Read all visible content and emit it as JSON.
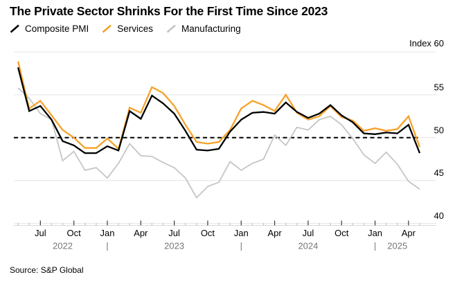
{
  "title": "The Private Sector Shrinks For the First Time Since 2023",
  "legend": {
    "items": [
      {
        "label": "Composite PMI",
        "color": "#000000"
      },
      {
        "label": "Services",
        "color": "#f7a128"
      },
      {
        "label": "Manufacturing",
        "color": "#c5c5c5"
      }
    ]
  },
  "y_axis_top_label": "Index 60",
  "source": "Source: S&P Global",
  "colors": {
    "composite": "#000000",
    "services": "#f7a128",
    "manufacturing": "#c5c5c5",
    "gridline": "#e4e4e4",
    "axis_line": "#d8d8d8",
    "major_tick": "#3a3a3a",
    "minor_tick": "#c2c2c2",
    "year_text": "#767676",
    "reference_line": "#000000"
  },
  "chart_data": {
    "type": "line",
    "title": "The Private Sector Shrinks For the First Time Since 2023",
    "x": [
      "2022-04",
      "2022-05",
      "2022-06",
      "2022-07",
      "2022-08",
      "2022-09",
      "2022-10",
      "2022-11",
      "2022-12",
      "2023-01",
      "2023-02",
      "2023-03",
      "2023-04",
      "2023-05",
      "2023-06",
      "2023-07",
      "2023-08",
      "2023-09",
      "2023-10",
      "2023-11",
      "2023-12",
      "2024-01",
      "2024-02",
      "2024-03",
      "2024-04",
      "2024-05",
      "2024-06",
      "2024-07",
      "2024-08",
      "2024-09",
      "2024-10",
      "2024-11",
      "2024-12",
      "2025-01",
      "2025-02",
      "2025-03",
      "2025-04"
    ],
    "series": [
      {
        "name": "Composite PMI",
        "color": "#000000",
        "values": [
          58.2,
          53.1,
          53.7,
          52.1,
          49.6,
          49.1,
          48.2,
          48.2,
          49.0,
          48.5,
          53.1,
          52.2,
          54.9,
          54.0,
          52.8,
          50.8,
          48.6,
          48.5,
          48.7,
          50.7,
          52.1,
          52.9,
          53.0,
          52.8,
          54.1,
          53.0,
          52.3,
          52.8,
          53.8,
          52.6,
          51.8,
          50.5,
          50.4,
          50.6,
          50.5,
          51.5,
          48.2
        ]
      },
      {
        "name": "Services",
        "color": "#f7a128",
        "values": [
          58.9,
          53.4,
          54.3,
          52.6,
          50.9,
          50.0,
          48.8,
          48.8,
          49.9,
          48.7,
          53.5,
          52.9,
          55.9,
          55.2,
          53.7,
          51.5,
          49.5,
          49.3,
          49.5,
          50.9,
          53.4,
          54.3,
          53.8,
          53.1,
          55.0,
          52.9,
          52.1,
          52.5,
          53.7,
          52.4,
          52.0,
          50.8,
          51.1,
          50.8,
          51.0,
          52.5,
          48.9
        ]
      },
      {
        "name": "Manufacturing",
        "color": "#c5c5c5",
        "values": [
          55.8,
          54.6,
          52.8,
          52.1,
          47.3,
          48.4,
          46.2,
          46.5,
          45.3,
          47.0,
          49.3,
          47.9,
          47.8,
          47.1,
          46.5,
          45.3,
          43.0,
          44.3,
          44.8,
          47.2,
          46.2,
          47.0,
          47.5,
          50.3,
          49.1,
          51.2,
          50.9,
          52.1,
          52.5,
          51.5,
          49.9,
          48.0,
          47.0,
          48.3,
          46.9,
          44.9,
          44.0
        ]
      }
    ],
    "ylabel": "Index",
    "ylim": [
      40,
      60
    ],
    "yticks": [
      40,
      45,
      50,
      55,
      60
    ],
    "reference_line": 50,
    "grid": "horizontal",
    "legend_position": "top-left",
    "x_tick_labels": [
      "Jul",
      "Oct",
      "Jan",
      "Apr",
      "Jul",
      "Oct",
      "Jan",
      "Apr",
      "Jul",
      "Oct",
      "Jan",
      "Apr"
    ],
    "x_tick_boundary_indices": [
      2,
      5,
      8,
      11,
      14,
      17,
      20,
      23,
      26,
      29,
      32,
      35
    ],
    "years": [
      {
        "label": "2022",
        "from": 0,
        "to": 8
      },
      {
        "label": "2023",
        "from": 8,
        "to": 20
      },
      {
        "label": "2024",
        "from": 20,
        "to": 32
      },
      {
        "label": "2025",
        "from": 32,
        "to": 36
      }
    ],
    "year_separator_indices": [
      8,
      20,
      32
    ]
  }
}
